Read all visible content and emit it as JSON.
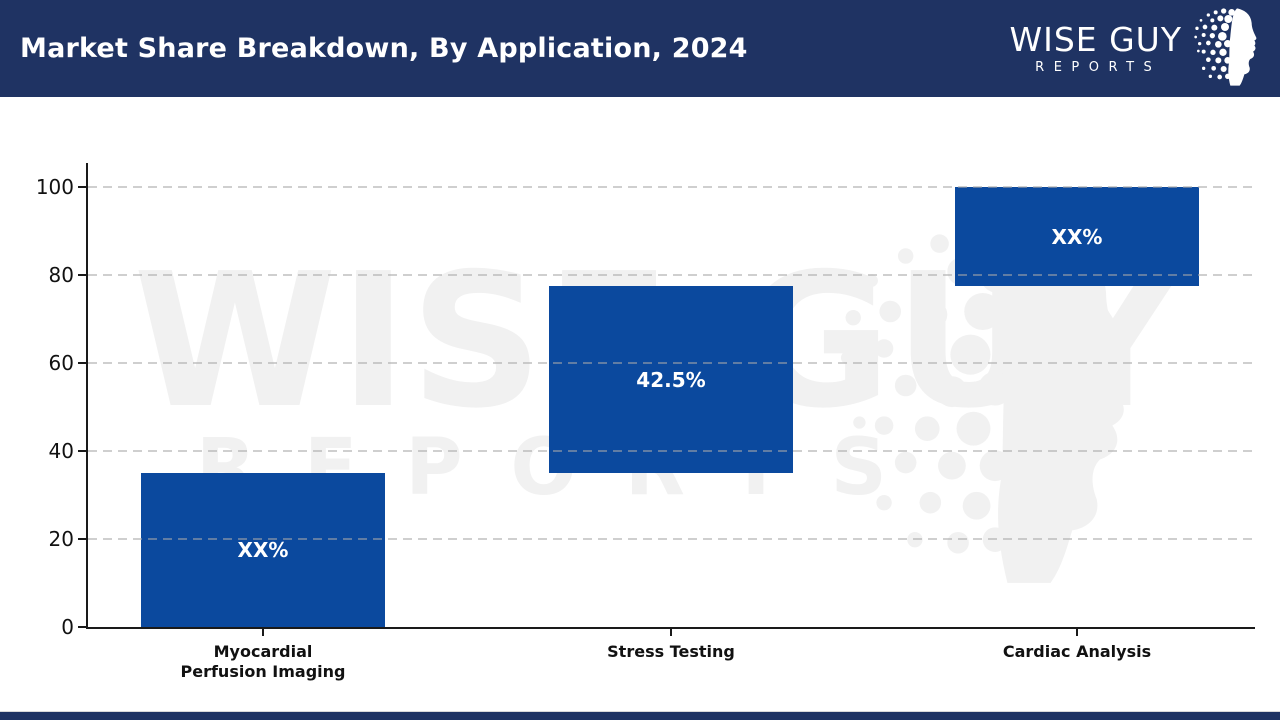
{
  "theme": {
    "header_bg": "#1f3363",
    "footer_bg": "#1f3363",
    "bar_blue": "#0b499e",
    "axis_color": "#1a1a1a",
    "watermark_gray": "#f1f1f1",
    "text_white": "#ffffff"
  },
  "header": {
    "title": "Market Share Breakdown, By Application, 2024",
    "logo": {
      "line1": "WISE GUY",
      "line2": "REPORTS"
    }
  },
  "watermark": {
    "line1": "WISE GUY",
    "line2": "REPORTS"
  },
  "chart_data": {
    "type": "bar",
    "subtype": "floating_stacked_percentage",
    "title": "Market Share Breakdown, By Application, 2024",
    "categories": [
      "Myocardial Perfusion Imaging",
      "Stress Testing",
      "Cardiac Analysis"
    ],
    "segments": [
      {
        "category": "Myocardial Perfusion Imaging",
        "category_lines": [
          "Myocardial",
          "Perfusion Imaging"
        ],
        "start": 0,
        "end": 35,
        "value": 35,
        "label": "XX%"
      },
      {
        "category": "Stress Testing",
        "category_lines": [
          "Stress Testing"
        ],
        "start": 35,
        "end": 77.5,
        "value": 42.5,
        "label": "42.5%"
      },
      {
        "category": "Cardiac Analysis",
        "category_lines": [
          "Cardiac Analysis"
        ],
        "start": 77.5,
        "end": 100,
        "value": 22.5,
        "label": "XX%"
      }
    ],
    "yticks": [
      0,
      20,
      40,
      60,
      80,
      100
    ],
    "ylim": [
      0,
      105.5
    ],
    "xlabel": "",
    "ylabel": "",
    "grid": "horizontal-dashed",
    "legend": "none",
    "bar_color": "#0b499e",
    "bar_label_color": "#ffffff"
  }
}
